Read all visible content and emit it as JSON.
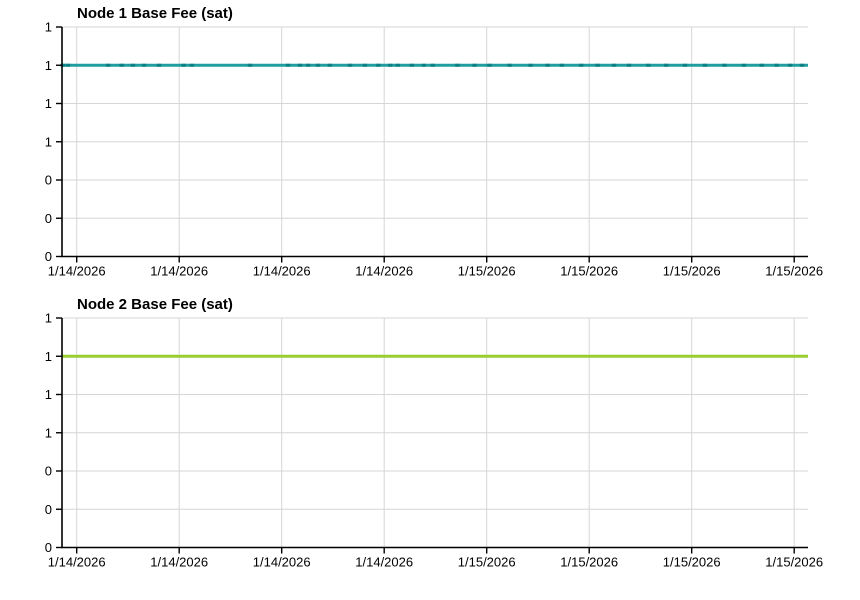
{
  "page": {
    "background": "#ffffff",
    "text_color": "#000000",
    "grid_color": "#d6d6d6",
    "axis_color": "#000000"
  },
  "chart_data": [
    {
      "type": "line",
      "title": "Node 1 Base Fee (sat)",
      "xlabel": "",
      "ylabel": "",
      "x_tick_labels": [
        "1/14/2026",
        "1/14/2026",
        "1/14/2026",
        "1/14/2026",
        "1/15/2026",
        "1/15/2026",
        "1/15/2026",
        "1/15/2026"
      ],
      "y_tick_labels": [
        "1",
        "1",
        "1",
        "1",
        "0",
        "0",
        "0"
      ],
      "y_tick_values": [
        1.2,
        1.0,
        0.8,
        0.6,
        0.4,
        0.2,
        0
      ],
      "ylim": [
        0,
        1.2
      ],
      "grid": true,
      "legend_position": "none",
      "series": [
        {
          "name": "Node 1 Base Fee",
          "color": "#1f9da0",
          "marker_color": "#0c8084",
          "values": [
            1,
            1,
            1,
            1,
            1,
            1,
            1,
            1
          ],
          "constant_value": 1,
          "marker_x_fractions": [
            0.001,
            0.008,
            0.062,
            0.08,
            0.095,
            0.11,
            0.13,
            0.163,
            0.174,
            0.252,
            0.303,
            0.319,
            0.33,
            0.343,
            0.359,
            0.386,
            0.406,
            0.424,
            0.44,
            0.45,
            0.469,
            0.485,
            0.497,
            0.53,
            0.553,
            0.573,
            0.6,
            0.628,
            0.651,
            0.67,
            0.696,
            0.718,
            0.74,
            0.76,
            0.786,
            0.81,
            0.835,
            0.862,
            0.888,
            0.914,
            0.938,
            0.958,
            0.976,
            0.992
          ]
        }
      ]
    },
    {
      "type": "line",
      "title": "Node 2 Base Fee (sat)",
      "xlabel": "",
      "ylabel": "",
      "x_tick_labels": [
        "1/14/2026",
        "1/14/2026",
        "1/14/2026",
        "1/14/2026",
        "1/15/2026",
        "1/15/2026",
        "1/15/2026",
        "1/15/2026"
      ],
      "y_tick_labels": [
        "1",
        "1",
        "1",
        "1",
        "0",
        "0",
        "0"
      ],
      "y_tick_values": [
        1.2,
        1.0,
        0.8,
        0.6,
        0.4,
        0.2,
        0
      ],
      "ylim": [
        0,
        1.2
      ],
      "grid": true,
      "legend_position": "none",
      "series": [
        {
          "name": "Node 2 Base Fee",
          "color": "#9acd32",
          "marker_color": "#9acd32",
          "values": [
            1,
            1,
            1,
            1,
            1,
            1,
            1,
            1
          ],
          "constant_value": 1,
          "marker_x_fractions": []
        }
      ]
    }
  ]
}
